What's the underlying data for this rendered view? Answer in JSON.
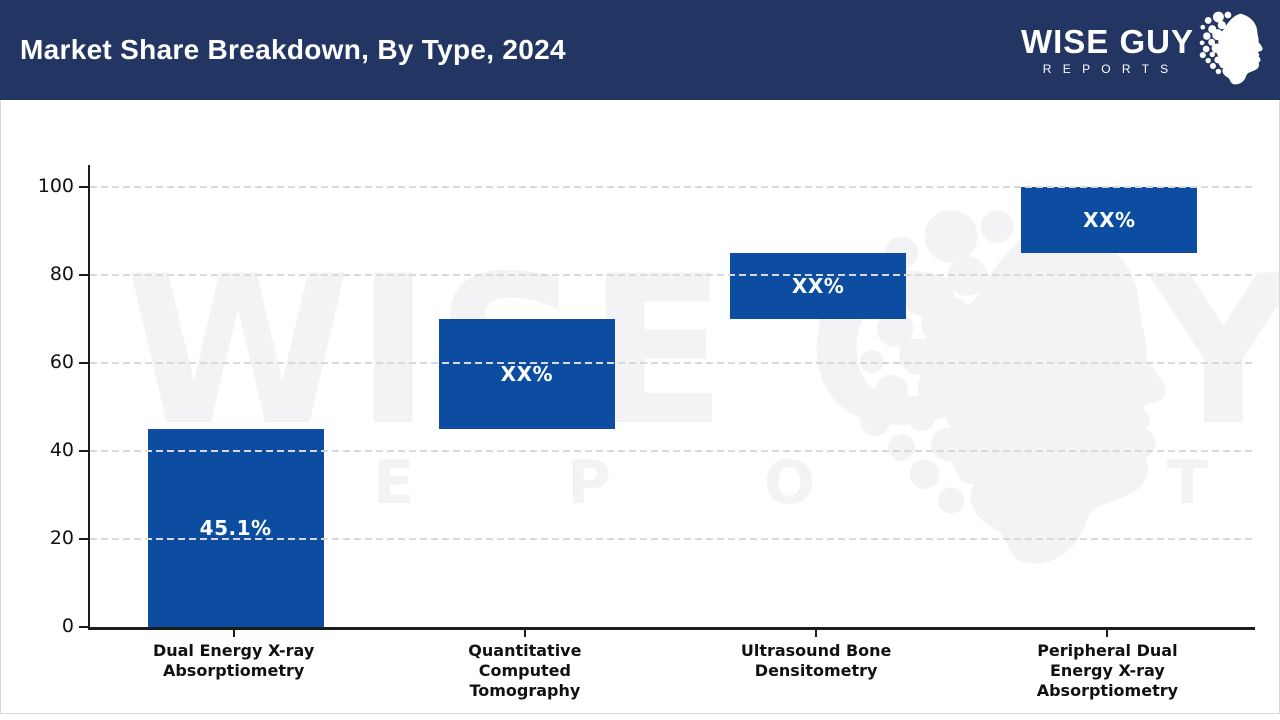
{
  "header": {
    "title": "Market Share Breakdown, By Type, 2024",
    "logo": {
      "brand": "WISE GUY",
      "sub": "R E P O R T S"
    }
  },
  "watermark": {
    "brand": "WISE GUY",
    "sub": "R E P O R T S"
  },
  "chart_data": {
    "type": "bar",
    "subtype": "floating-waterfall-segments",
    "title": "Market Share Breakdown, By Type, 2024",
    "categories": [
      "Dual Energy X-ray\nAbsorptiometry",
      "Quantitative\nComputed\nTomography",
      "Ultrasound Bone\nDensitometry",
      "Peripheral Dual\nEnergy X-ray\nAbsorptiometry"
    ],
    "bars": [
      {
        "label": "45.1%",
        "start": 0,
        "end": 45.1
      },
      {
        "label": "XX%",
        "start": 45.1,
        "end": 70
      },
      {
        "label": "XX%",
        "start": 70,
        "end": 85
      },
      {
        "label": "XX%",
        "start": 85,
        "end": 100
      }
    ],
    "xlabel": "",
    "ylabel": "",
    "yticks": [
      0,
      20,
      40,
      60,
      80,
      100
    ],
    "ylim": [
      0,
      105
    ],
    "grid": "horizontal-dashed",
    "legend": "none"
  },
  "colors": {
    "header_bg": "#223563",
    "bar": "#0c4da2",
    "bar_label": "#ffffff",
    "grid": "#d9d9d9",
    "axis": "#1c1c1c",
    "tick_text": "#111111",
    "watermark": "#f3f3f5"
  }
}
